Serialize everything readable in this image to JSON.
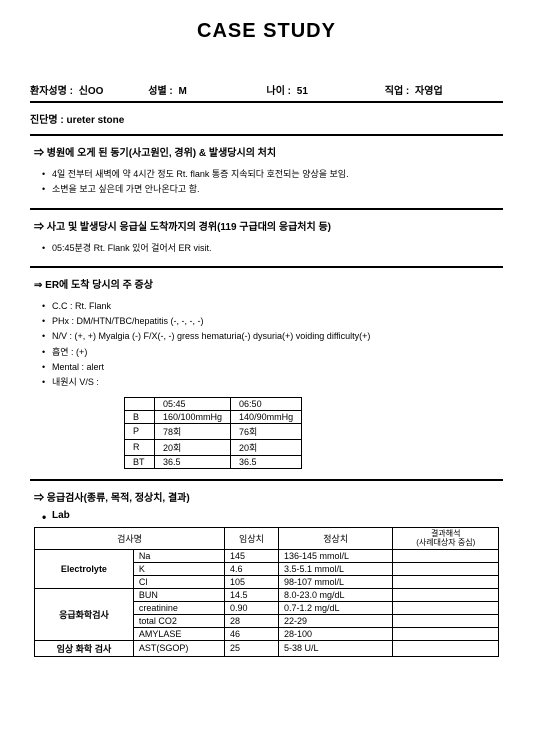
{
  "title": "CASE STUDY",
  "patient": {
    "nameLabel": "환자성명 :",
    "name": "신OO",
    "sexLabel": "성별 :",
    "sex": "M",
    "ageLabel": "나이 :",
    "age": "51",
    "occupationLabel": "직업 :",
    "occupation": "자영업"
  },
  "diagnosis": {
    "label": "진단명 :",
    "value": "ureter stone"
  },
  "section1": {
    "heading": "⇒ 병원에 오게 된 동기(사고원인, 경위) & 발생당시의 처치",
    "bullets": [
      "4일 전부터 새벽에 약 4시간 정도 Rt. flank 통증 지속되다 호전되는 양상을 보임.",
      "소변을 보고 싶은데 가면 안나온다고 함."
    ]
  },
  "section2": {
    "heading": "⇒ 사고 및 발생당시 응급실 도착까지의 경위(119 구급대의 응급처치 등)",
    "bullets": [
      "05:45분경 Rt. Flank 있어 걸어서 ER visit."
    ]
  },
  "section3": {
    "heading": "⇒ ER에 도착 당시의 주 증상",
    "bullets": [
      "C.C : Rt. Flank",
      "PHx : DM/HTN/TBC/hepatitis (-, -, -, -)",
      "N/V : (+, +) Myalgia (-)   F/X(-, -)    gress hematuria(-)    dysuria(+)    voiding difficulty(+)",
      "흡연 : (+)",
      "Mental : alert",
      "내원시 V/S :"
    ],
    "vsTable": {
      "headers": [
        "",
        "05:45",
        "06:50"
      ],
      "rows": [
        [
          "B",
          "160/100mmHg",
          "140/90mmHg"
        ],
        [
          "P",
          "78회",
          "76회"
        ],
        [
          "R",
          "20회",
          "20회"
        ],
        [
          "BT",
          "36.5",
          "36.5"
        ]
      ]
    }
  },
  "section4": {
    "heading": "⇒ 응급검사(종류, 목적, 정상치, 결과)",
    "sublabel": "Lab",
    "labTable": {
      "headers": [
        "검사명",
        "",
        "임상치",
        "정상치",
        "결과해석\n(사례대상자 중심)"
      ],
      "rows": [
        {
          "cat": "Electrolyte",
          "span": 3,
          "name": "Na",
          "val": "145",
          "norm": "136-145 mmol/L",
          "interp": ""
        },
        {
          "name": "K",
          "val": "4.6",
          "norm": "3.5-5.1 mmol/L",
          "interp": ""
        },
        {
          "name": "Cl",
          "val": "105",
          "norm": "98-107 mmol/L",
          "interp": ""
        },
        {
          "cat": "응급화학검사",
          "span": 4,
          "name": "BUN",
          "val": "14.5",
          "norm": "8.0-23.0 mg/dL",
          "interp": ""
        },
        {
          "name": "creatinine",
          "val": "0.90",
          "norm": "0.7-1.2 mg/dL",
          "interp": ""
        },
        {
          "name": "total CO2",
          "val": "28",
          "norm": "22-29",
          "interp": ""
        },
        {
          "name": "AMYLASE",
          "val": "46",
          "norm": "28-100",
          "interp": ""
        },
        {
          "cat": "임상 화학 검사",
          "span": 1,
          "name": "AST(SGOP)",
          "val": "25",
          "norm": "5-38 U/L",
          "interp": ""
        }
      ]
    }
  }
}
